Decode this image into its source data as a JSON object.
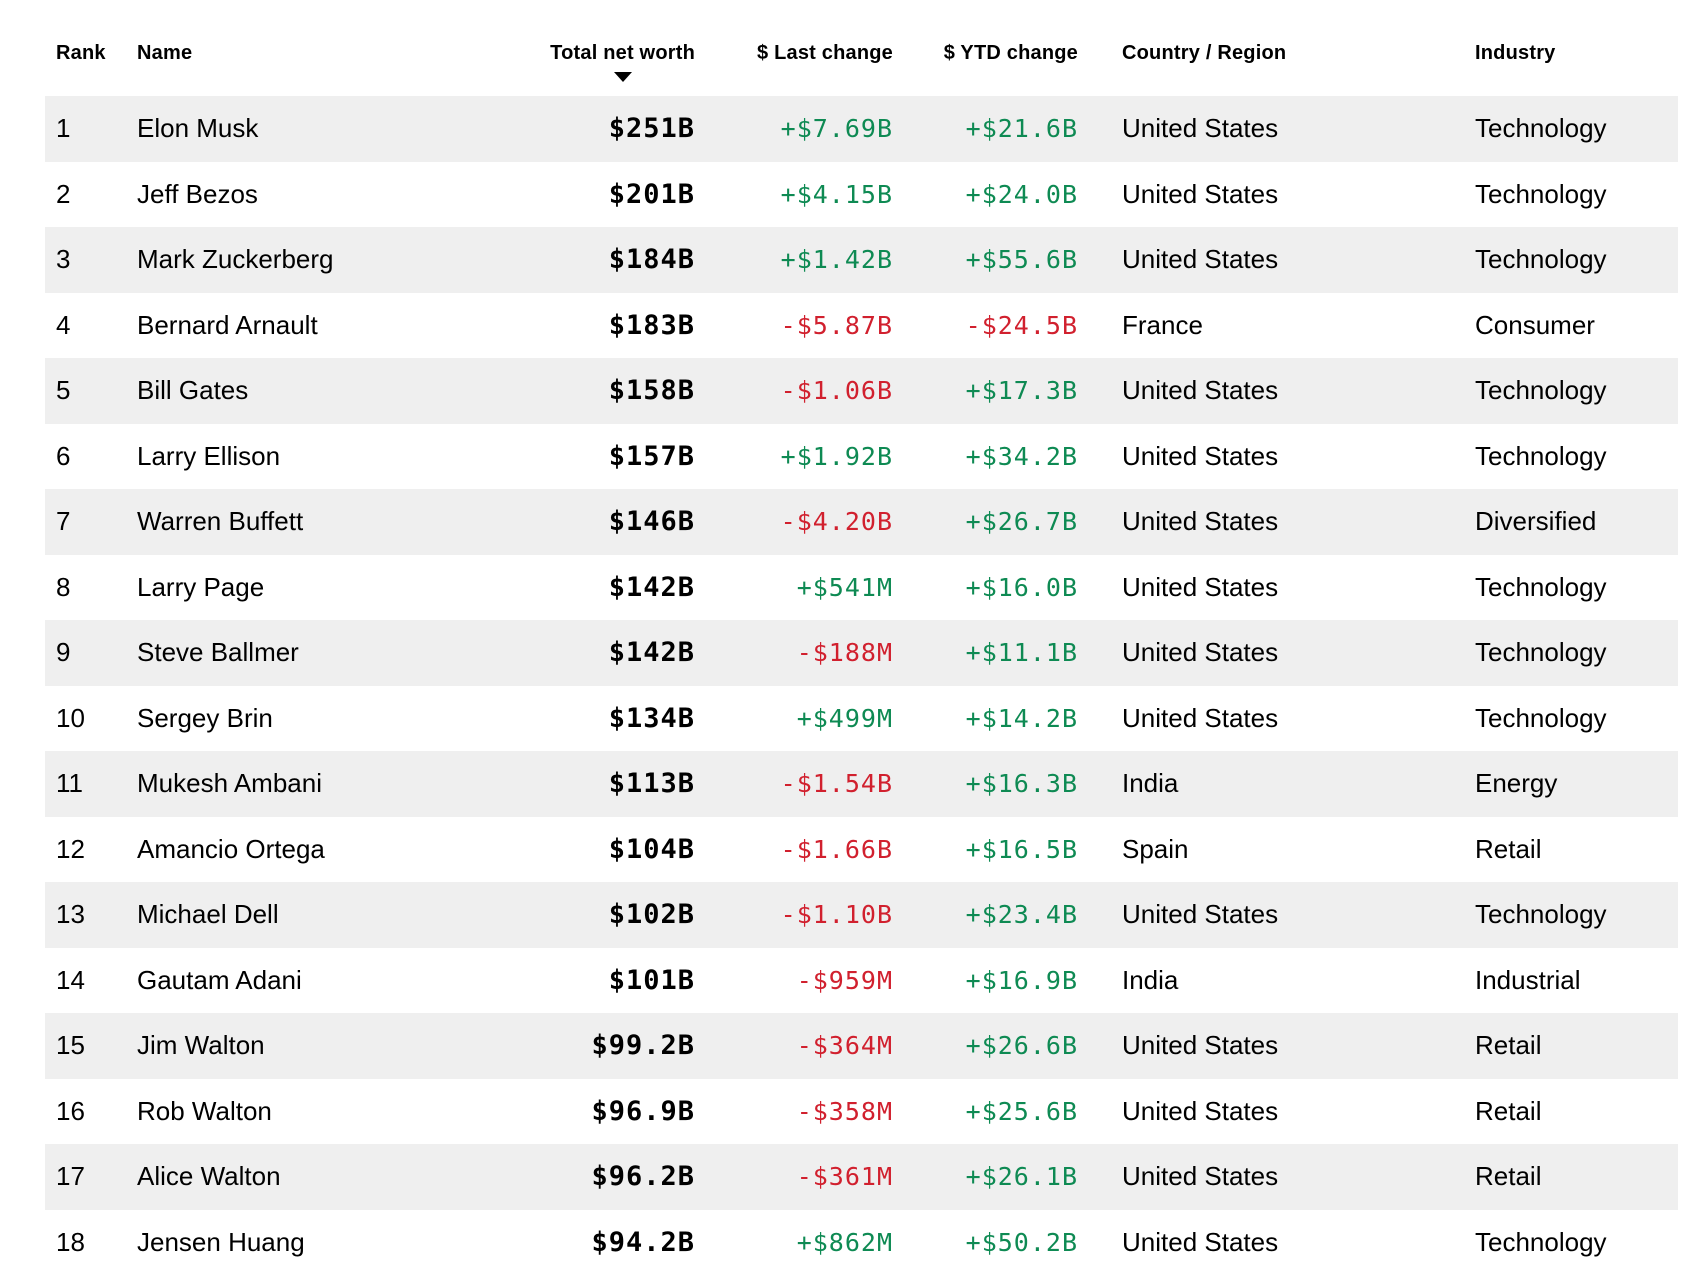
{
  "colors": {
    "positive_change": "#0e8a53",
    "negative_change": "#d1202e",
    "row_shade": "#efefef",
    "header_text": "#000000"
  },
  "table": {
    "columns": [
      {
        "key": "rank",
        "label": "Rank",
        "align": "left"
      },
      {
        "key": "name",
        "label": "Name",
        "align": "left"
      },
      {
        "key": "net_worth",
        "label": "Total net worth",
        "align": "right",
        "sorted": "descending",
        "sort_icon": "triangle-down-icon"
      },
      {
        "key": "last_change",
        "label": "$ Last change",
        "align": "right"
      },
      {
        "key": "ytd_change",
        "label": "$ YTD change",
        "align": "right"
      },
      {
        "key": "country",
        "label": "Country / Region",
        "align": "left"
      },
      {
        "key": "industry",
        "label": "Industry",
        "align": "left"
      }
    ],
    "rows": [
      {
        "rank": "1",
        "name": "Elon Musk",
        "net_worth": "$251B",
        "last_change": "+$7.69B",
        "ytd_change": "+$21.6B",
        "country": "United States",
        "industry": "Technology"
      },
      {
        "rank": "2",
        "name": "Jeff Bezos",
        "net_worth": "$201B",
        "last_change": "+$4.15B",
        "ytd_change": "+$24.0B",
        "country": "United States",
        "industry": "Technology"
      },
      {
        "rank": "3",
        "name": "Mark Zuckerberg",
        "net_worth": "$184B",
        "last_change": "+$1.42B",
        "ytd_change": "+$55.6B",
        "country": "United States",
        "industry": "Technology"
      },
      {
        "rank": "4",
        "name": "Bernard Arnault",
        "net_worth": "$183B",
        "last_change": "-$5.87B",
        "ytd_change": "-$24.5B",
        "country": "France",
        "industry": "Consumer"
      },
      {
        "rank": "5",
        "name": "Bill Gates",
        "net_worth": "$158B",
        "last_change": "-$1.06B",
        "ytd_change": "+$17.3B",
        "country": "United States",
        "industry": "Technology"
      },
      {
        "rank": "6",
        "name": "Larry Ellison",
        "net_worth": "$157B",
        "last_change": "+$1.92B",
        "ytd_change": "+$34.2B",
        "country": "United States",
        "industry": "Technology"
      },
      {
        "rank": "7",
        "name": "Warren Buffett",
        "net_worth": "$146B",
        "last_change": "-$4.20B",
        "ytd_change": "+$26.7B",
        "country": "United States",
        "industry": "Diversified"
      },
      {
        "rank": "8",
        "name": "Larry Page",
        "net_worth": "$142B",
        "last_change": "+$541M",
        "ytd_change": "+$16.0B",
        "country": "United States",
        "industry": "Technology"
      },
      {
        "rank": "9",
        "name": "Steve Ballmer",
        "net_worth": "$142B",
        "last_change": "-$188M",
        "ytd_change": "+$11.1B",
        "country": "United States",
        "industry": "Technology"
      },
      {
        "rank": "10",
        "name": "Sergey Brin",
        "net_worth": "$134B",
        "last_change": "+$499M",
        "ytd_change": "+$14.2B",
        "country": "United States",
        "industry": "Technology"
      },
      {
        "rank": "11",
        "name": "Mukesh Ambani",
        "net_worth": "$113B",
        "last_change": "-$1.54B",
        "ytd_change": "+$16.3B",
        "country": "India",
        "industry": "Energy"
      },
      {
        "rank": "12",
        "name": "Amancio Ortega",
        "net_worth": "$104B",
        "last_change": "-$1.66B",
        "ytd_change": "+$16.5B",
        "country": "Spain",
        "industry": "Retail"
      },
      {
        "rank": "13",
        "name": "Michael Dell",
        "net_worth": "$102B",
        "last_change": "-$1.10B",
        "ytd_change": "+$23.4B",
        "country": "United States",
        "industry": "Technology"
      },
      {
        "rank": "14",
        "name": "Gautam Adani",
        "net_worth": "$101B",
        "last_change": "-$959M",
        "ytd_change": "+$16.9B",
        "country": "India",
        "industry": "Industrial"
      },
      {
        "rank": "15",
        "name": "Jim Walton",
        "net_worth": "$99.2B",
        "last_change": "-$364M",
        "ytd_change": "+$26.6B",
        "country": "United States",
        "industry": "Retail"
      },
      {
        "rank": "16",
        "name": "Rob Walton",
        "net_worth": "$96.9B",
        "last_change": "-$358M",
        "ytd_change": "+$25.6B",
        "country": "United States",
        "industry": "Retail"
      },
      {
        "rank": "17",
        "name": "Alice Walton",
        "net_worth": "$96.2B",
        "last_change": "-$361M",
        "ytd_change": "+$26.1B",
        "country": "United States",
        "industry": "Retail"
      },
      {
        "rank": "18",
        "name": "Jensen Huang",
        "net_worth": "$94.2B",
        "last_change": "+$862M",
        "ytd_change": "+$50.2B",
        "country": "United States",
        "industry": "Technology"
      }
    ]
  }
}
